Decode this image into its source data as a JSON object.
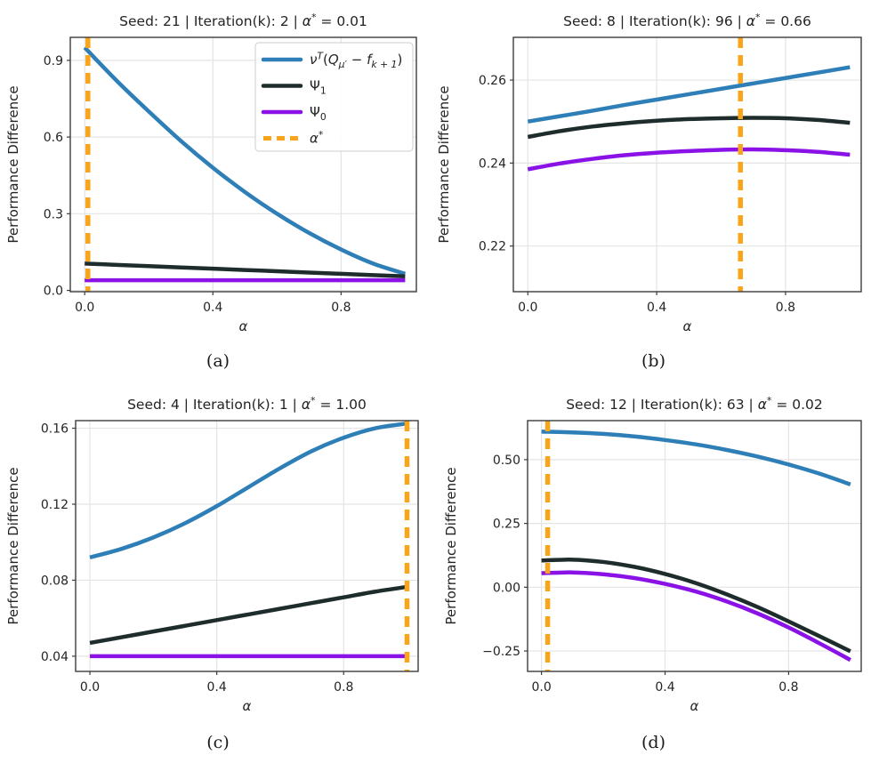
{
  "figure": {
    "background": "#ffffff",
    "ylabel": "Performance Difference",
    "xlabel": "α",
    "palette": {
      "series_blue": "#2e7fb7",
      "series_dark": "#1e2c2c",
      "series_purple": "#8a12e6",
      "alpha_star_orange": "#f8a51b",
      "grid": "#e4e4e4",
      "spine": "#3c3c3c",
      "text": "#242424"
    },
    "legend": {
      "entries": [
        {
          "name": "nu-term",
          "color": "series_blue",
          "dashed": false,
          "label": "νᵀ(Q_μ′ − f_k+1)",
          "tokens": [
            {
              "t": "ν",
              "style": "italic"
            },
            {
              "t": "T",
              "pos": "sup",
              "style": "italic"
            },
            {
              "t": "(",
              "style": "normal"
            },
            {
              "t": "Q",
              "style": "italic"
            },
            {
              "t": "μ′",
              "pos": "sub",
              "style": "italic"
            },
            {
              "t": " − ",
              "style": "normal"
            },
            {
              "t": "f",
              "style": "italic"
            },
            {
              "t": "k + 1",
              "pos": "sub",
              "style": "italic"
            },
            {
              "t": ")",
              "style": "normal"
            }
          ]
        },
        {
          "name": "psi-1",
          "color": "series_dark",
          "dashed": false,
          "label": "Ψ1",
          "tokens": [
            {
              "t": "Ψ",
              "style": "normal"
            },
            {
              "t": "1",
              "pos": "sub",
              "style": "normal"
            }
          ]
        },
        {
          "name": "psi-0",
          "color": "series_purple",
          "dashed": false,
          "label": "Ψ0",
          "tokens": [
            {
              "t": "Ψ",
              "style": "normal"
            },
            {
              "t": "0",
              "pos": "sub",
              "style": "normal"
            }
          ]
        },
        {
          "name": "alpha-star",
          "color": "alpha_star_orange",
          "dashed": true,
          "label": "α*",
          "tokens": [
            {
              "t": "α",
              "style": "italic"
            },
            {
              "t": "*",
              "pos": "sup",
              "style": "normal"
            }
          ]
        }
      ]
    }
  },
  "chart_data": [
    {
      "id": "a",
      "type": "line",
      "caption": "(a)",
      "title": {
        "text": "Seed: 21 | Iteration(k): 2 | α* = 0.01",
        "prefix": "Seed: 21 | Iteration(k): 2 | ",
        "alpha": "α",
        "star": "*",
        "suffix": " = 0.01"
      },
      "xlabel": "α",
      "ylabel": "Performance Difference",
      "xlim": [
        -0.045,
        1.035
      ],
      "ylim": [
        -0.005,
        0.99
      ],
      "x_tick_values": [
        0.0,
        0.4,
        0.8
      ],
      "x_tick_labels": [
        "0.0",
        "0.4",
        "0.8"
      ],
      "y_tick_values": [
        0.0,
        0.3,
        0.6,
        0.9
      ],
      "y_tick_labels": [
        "0.0",
        "0.3",
        "0.6",
        "0.9"
      ],
      "grid": true,
      "show_legend": true,
      "alpha_star": 0.01,
      "x": [
        0,
        0.1,
        0.2,
        0.3,
        0.4,
        0.5,
        0.6,
        0.7,
        0.8,
        0.9,
        1.0
      ],
      "series": [
        {
          "name": "nu-term",
          "color": "series_blue",
          "values": [
            0.95,
            0.82,
            0.7,
            0.585,
            0.48,
            0.385,
            0.3,
            0.225,
            0.16,
            0.105,
            0.065
          ]
        },
        {
          "name": "psi-1",
          "color": "series_dark",
          "values": [
            0.105,
            0.1,
            0.095,
            0.09,
            0.085,
            0.08,
            0.075,
            0.07,
            0.065,
            0.06,
            0.055
          ]
        },
        {
          "name": "psi-0",
          "color": "series_purple",
          "values": [
            0.04,
            0.04,
            0.04,
            0.04,
            0.04,
            0.04,
            0.04,
            0.04,
            0.04,
            0.04,
            0.04
          ]
        }
      ]
    },
    {
      "id": "b",
      "type": "line",
      "caption": "(b)",
      "title": {
        "text": "Seed: 8 | Iteration(k): 96 | α* = 0.66",
        "prefix": "Seed: 8 | Iteration(k): 96 | ",
        "alpha": "α",
        "star": "*",
        "suffix": " = 0.66"
      },
      "xlabel": "α",
      "ylabel": "Performance Difference",
      "xlim": [
        -0.045,
        1.035
      ],
      "ylim": [
        0.209,
        0.2703
      ],
      "x_tick_values": [
        0.0,
        0.4,
        0.8
      ],
      "x_tick_labels": [
        "0.0",
        "0.4",
        "0.8"
      ],
      "y_tick_values": [
        0.22,
        0.24,
        0.26
      ],
      "y_tick_labels": [
        "0.22",
        "0.24",
        "0.26"
      ],
      "grid": true,
      "show_legend": false,
      "alpha_star": 0.66,
      "x": [
        0,
        0.1,
        0.2,
        0.3,
        0.4,
        0.5,
        0.6,
        0.7,
        0.8,
        0.9,
        1.0
      ],
      "series": [
        {
          "name": "nu-term",
          "color": "series_blue",
          "values": [
            0.25,
            0.2513,
            0.2526,
            0.254,
            0.2553,
            0.2566,
            0.2579,
            0.2592,
            0.2605,
            0.2618,
            0.2631
          ]
        },
        {
          "name": "psi-1",
          "color": "series_dark",
          "values": [
            0.2463,
            0.2477,
            0.2488,
            0.2496,
            0.2502,
            0.2506,
            0.2508,
            0.2509,
            0.2508,
            0.2504,
            0.2497
          ]
        },
        {
          "name": "psi-0",
          "color": "series_purple",
          "values": [
            0.2385,
            0.2399,
            0.241,
            0.2419,
            0.2425,
            0.2429,
            0.2432,
            0.2433,
            0.2431,
            0.2427,
            0.242
          ]
        }
      ]
    },
    {
      "id": "c",
      "type": "line",
      "caption": "(c)",
      "title": {
        "text": "Seed: 4 | Iteration(k): 1 | α* = 1.00",
        "prefix": "Seed: 4 | Iteration(k): 1 | ",
        "alpha": "α",
        "star": "*",
        "suffix": " = 1.00"
      },
      "xlabel": "α",
      "ylabel": "Performance Difference",
      "xlim": [
        -0.045,
        1.035
      ],
      "ylim": [
        0.032,
        0.164
      ],
      "x_tick_values": [
        0.0,
        0.4,
        0.8
      ],
      "x_tick_labels": [
        "0.0",
        "0.4",
        "0.8"
      ],
      "y_tick_values": [
        0.04,
        0.08,
        0.12,
        0.16
      ],
      "y_tick_labels": [
        "0.04",
        "0.08",
        "0.12",
        "0.16"
      ],
      "grid": true,
      "show_legend": false,
      "alpha_star": 1.0,
      "x": [
        0,
        0.1,
        0.2,
        0.3,
        0.4,
        0.5,
        0.6,
        0.7,
        0.8,
        0.9,
        1.0
      ],
      "series": [
        {
          "name": "nu-term",
          "color": "series_blue",
          "values": [
            0.092,
            0.0965,
            0.1025,
            0.11,
            0.119,
            0.129,
            0.139,
            0.148,
            0.155,
            0.16,
            0.1625
          ]
        },
        {
          "name": "psi-1",
          "color": "series_dark",
          "values": [
            0.047,
            0.05,
            0.053,
            0.056,
            0.059,
            0.062,
            0.065,
            0.068,
            0.071,
            0.074,
            0.0765
          ]
        },
        {
          "name": "psi-0",
          "color": "series_purple",
          "values": [
            0.04,
            0.04,
            0.04,
            0.04,
            0.04,
            0.04,
            0.04,
            0.04,
            0.04,
            0.04,
            0.04
          ]
        }
      ]
    },
    {
      "id": "d",
      "type": "line",
      "caption": "(d)",
      "title": {
        "text": "Seed: 12 | Iteration(k): 63 | α* = 0.02",
        "prefix": "Seed: 12 | Iteration(k): 63 | ",
        "alpha": "α",
        "star": "*",
        "suffix": " = 0.02"
      },
      "xlabel": "α",
      "ylabel": "Performance Difference",
      "xlim": [
        -0.045,
        1.035
      ],
      "ylim": [
        -0.33,
        0.653
      ],
      "x_tick_values": [
        0.0,
        0.4,
        0.8
      ],
      "x_tick_labels": [
        "0.0",
        "0.4",
        "0.8"
      ],
      "y_tick_values": [
        -0.25,
        0.0,
        0.25,
        0.5
      ],
      "y_tick_labels": [
        "−0.25",
        "0.00",
        "0.25",
        "0.50"
      ],
      "grid": true,
      "show_legend": false,
      "alpha_star": 0.02,
      "x": [
        0,
        0.1,
        0.2,
        0.3,
        0.4,
        0.5,
        0.6,
        0.7,
        0.8,
        0.9,
        1.0
      ],
      "series": [
        {
          "name": "nu-term",
          "color": "series_blue",
          "values": [
            0.61,
            0.607,
            0.601,
            0.591,
            0.577,
            0.56,
            0.538,
            0.512,
            0.481,
            0.445,
            0.403
          ]
        },
        {
          "name": "psi-1",
          "color": "series_dark",
          "values": [
            0.105,
            0.108,
            0.099,
            0.08,
            0.052,
            0.016,
            -0.028,
            -0.078,
            -0.134,
            -0.192,
            -0.251
          ]
        },
        {
          "name": "psi-0",
          "color": "series_purple",
          "values": [
            0.055,
            0.058,
            0.051,
            0.036,
            0.013,
            -0.017,
            -0.056,
            -0.103,
            -0.158,
            -0.22,
            -0.285
          ]
        }
      ]
    }
  ]
}
